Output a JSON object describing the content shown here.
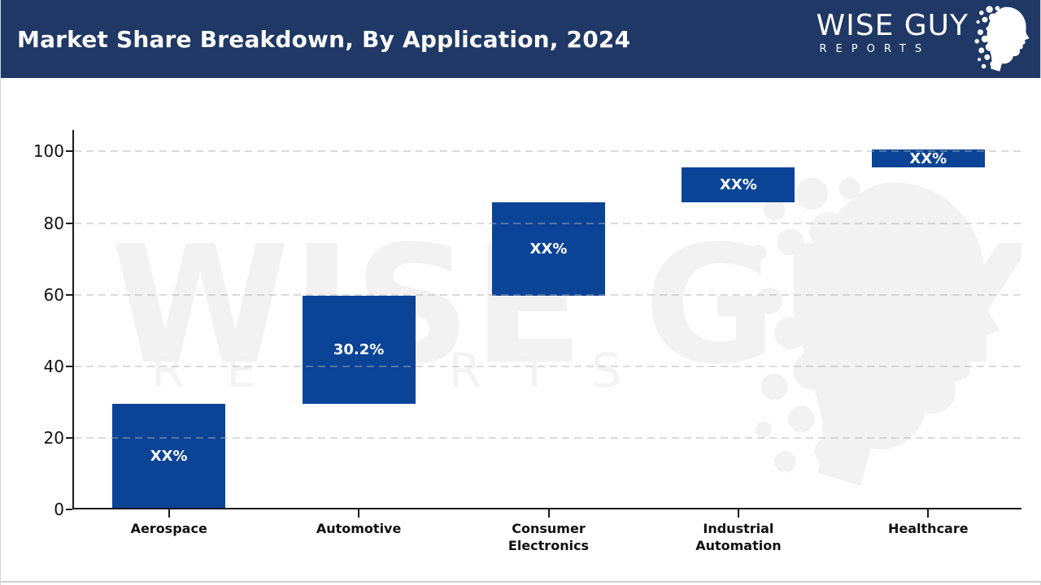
{
  "header": {
    "title": "Market Share Breakdown, By Application, 2024",
    "brand": {
      "line1": "WISE GUY",
      "line2": "REPORTS"
    }
  },
  "watermark": {
    "line1": "WISE GUY",
    "line2": "REPORTS"
  },
  "colors": {
    "header_bg": "#1F3865",
    "bar": "#0B4397",
    "bar_label": "#ffffff",
    "axis": "#1a1a1a",
    "grid": "#d9d9d9",
    "watermark": "#f2f2f2"
  },
  "chart_data": {
    "type": "bar",
    "subtype": "waterfall-cumulative",
    "title": "Market Share Breakdown, By Application, 2024",
    "categories": [
      "Aerospace",
      "Automotive",
      "Consumer\nElectronics",
      "Industrial\nAutomation",
      "Healthcare"
    ],
    "values": [
      29.0,
      30.2,
      26.2,
      9.6,
      5.0
    ],
    "cumulative_start": [
      0,
      29.0,
      59.2,
      85.4,
      95.0
    ],
    "bar_labels": [
      "XX%",
      "30.2%",
      "XX%",
      "XX%",
      "XX%"
    ],
    "y_ticks": [
      0,
      20,
      40,
      60,
      80,
      100
    ],
    "ylim": [
      0,
      106
    ],
    "xlabel": "",
    "ylabel": "",
    "grid": "horizontal-dashed",
    "legend": "none"
  }
}
